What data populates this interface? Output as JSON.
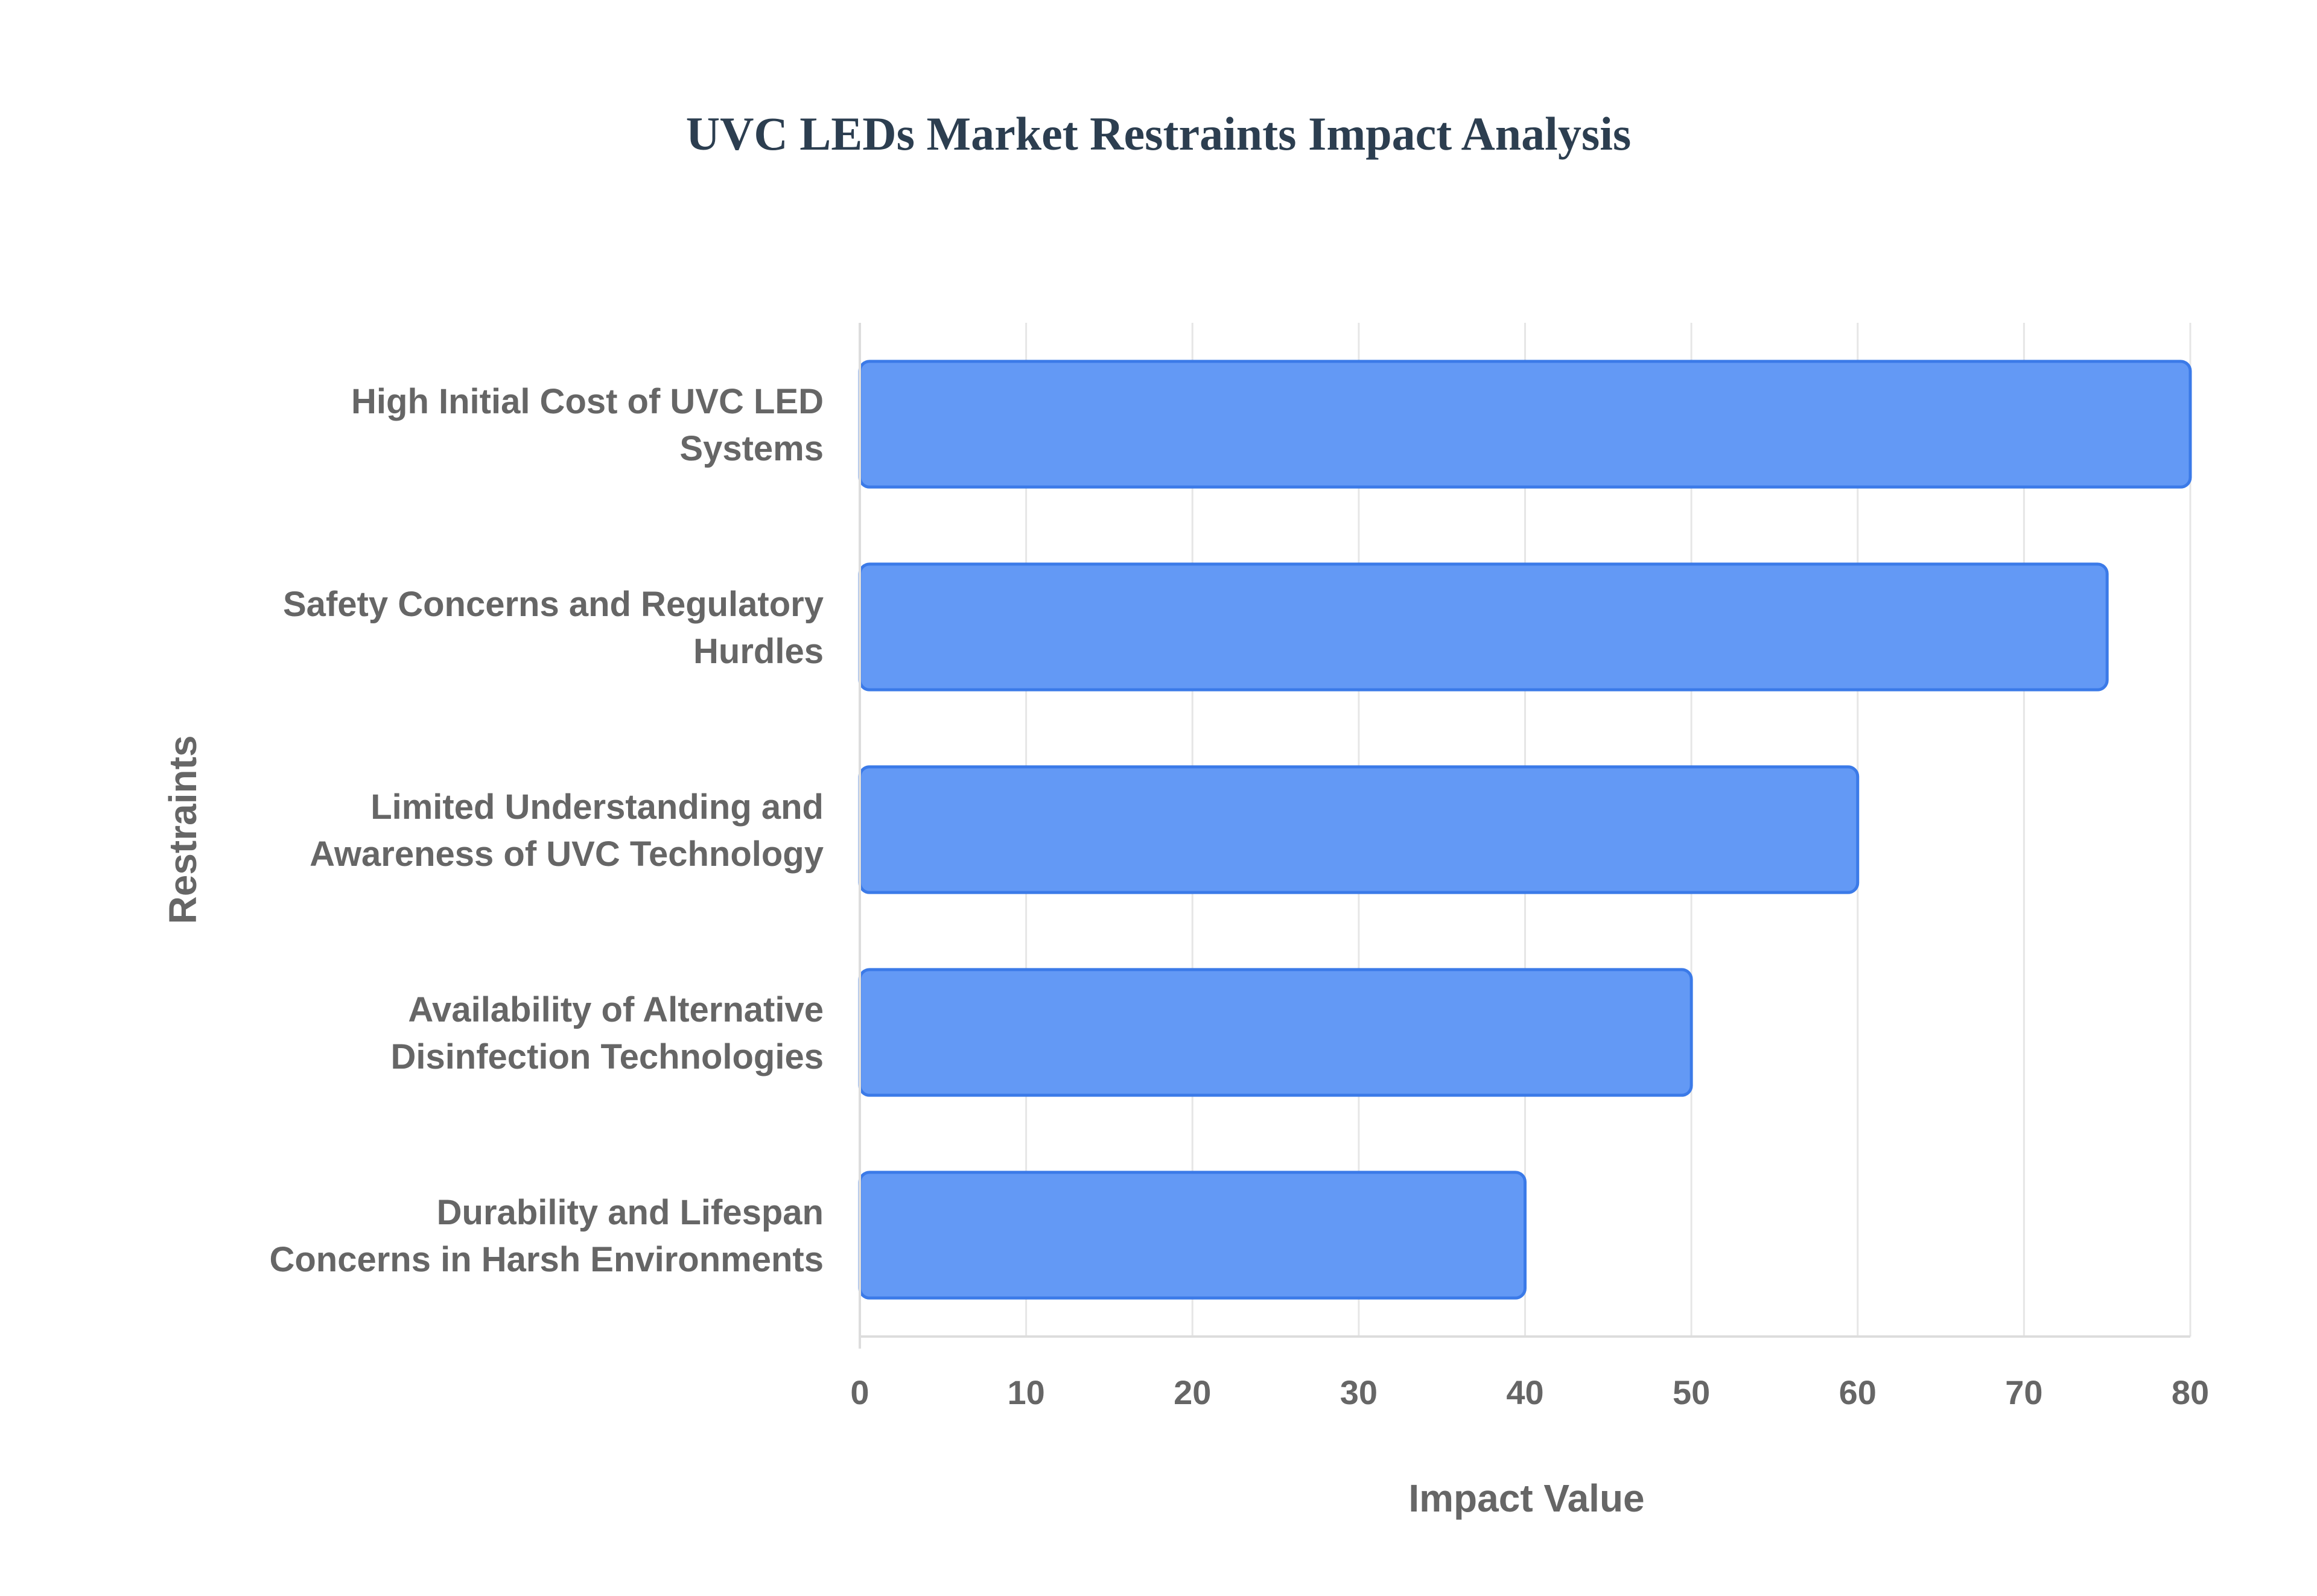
{
  "chart_data": {
    "type": "bar",
    "orientation": "horizontal",
    "title": "UVC LEDs Market Restraints Impact Analysis",
    "xlabel": "Impact Value",
    "ylabel": "Restraints",
    "xlim": [
      0,
      80
    ],
    "xticks": [
      0,
      10,
      20,
      30,
      40,
      50,
      60,
      70,
      80
    ],
    "grid": true,
    "categories": [
      [
        "High Initial Cost of UVC LED",
        "Systems"
      ],
      [
        "Safety Concerns and Regulatory",
        "Hurdles"
      ],
      [
        "Limited Understanding and",
        "Awareness of UVC Technology"
      ],
      [
        "Availability of Alternative",
        "Disinfection Technologies"
      ],
      [
        "Durability and Lifespan",
        "Concerns in Harsh Environments"
      ]
    ],
    "values": [
      80,
      75,
      60,
      50,
      40
    ],
    "colors": {
      "bar_fill": "#6399f5",
      "bar_stroke": "#3b7ae8",
      "grid": "#e6e6e6",
      "axis": "#dddddd",
      "title": "#2c3e50",
      "text": "#666666"
    }
  }
}
